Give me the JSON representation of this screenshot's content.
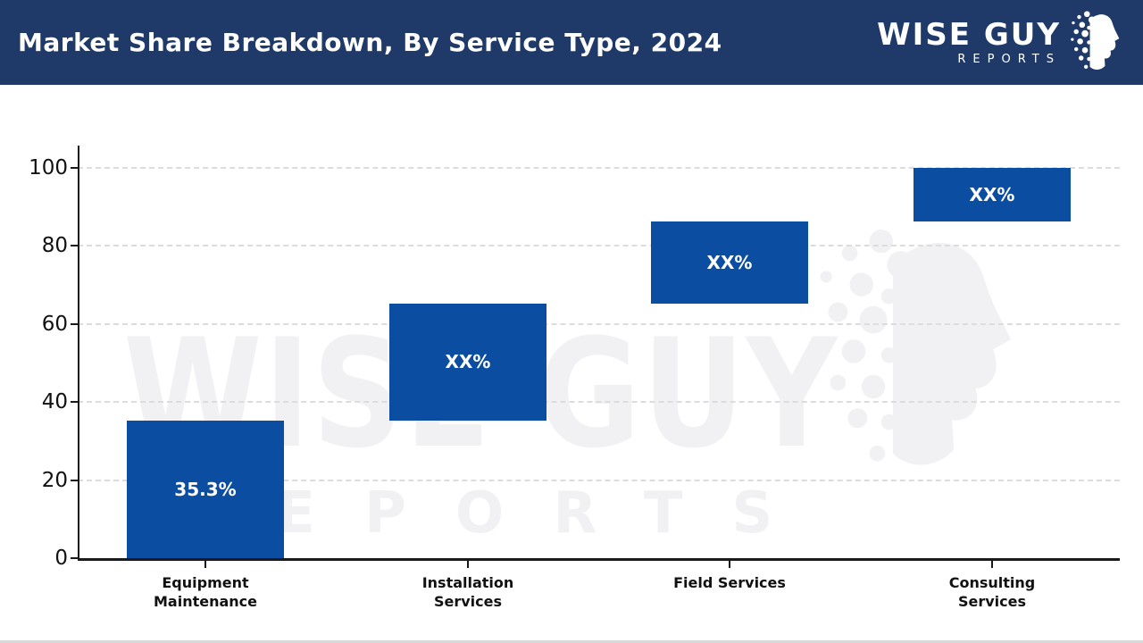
{
  "header": {
    "title": "Market Share Breakdown, By Service Type, 2024",
    "logo": {
      "line1": "WISE GUY",
      "line2": "REPORTS"
    }
  },
  "watermark": {
    "line1": "WISE GUY",
    "line2": "REPORTS"
  },
  "colors": {
    "header_bg": "#1f3a68",
    "bar_fill": "#0b4da1",
    "bar_label_text": "#ffffff",
    "gridline": "#dcdcdc",
    "axis": "#1a1a1a",
    "watermark": "#f1f1f4"
  },
  "chart_data": {
    "type": "bar",
    "subtype": "waterfall",
    "title": "Market Share Breakdown, By Service Type, 2024",
    "categories": [
      "Equipment Maintenance",
      "Installation Services",
      "Field Services",
      "Consulting Services"
    ],
    "categories_wrapped": [
      [
        "Equipment",
        "Maintenance"
      ],
      [
        "Installation",
        "Services"
      ],
      [
        "Field Services"
      ],
      [
        "Consulting",
        "Services"
      ]
    ],
    "series": [
      {
        "name": "Market share (%)",
        "segments": [
          {
            "category": "Equipment Maintenance",
            "start": 0,
            "end": 35.3,
            "label": "35.3%"
          },
          {
            "category": "Installation Services",
            "start": 35.3,
            "end": 65.1,
            "label": "XX%"
          },
          {
            "category": "Field Services",
            "start": 65.1,
            "end": 86.1,
            "label": "XX%"
          },
          {
            "category": "Consulting Services",
            "start": 86.1,
            "end": 100,
            "label": "XX%"
          }
        ]
      }
    ],
    "xlabel": "",
    "ylabel": "",
    "ylim": [
      0,
      105
    ],
    "yticks": [
      0,
      20,
      40,
      60,
      80,
      100
    ],
    "grid": "horizontal-dashed",
    "legend": "none"
  }
}
